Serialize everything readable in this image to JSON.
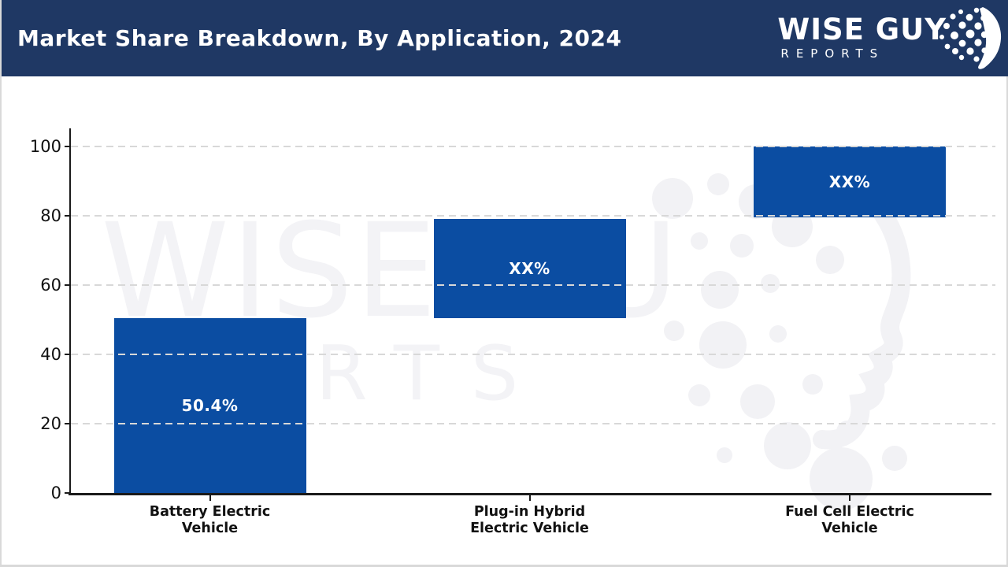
{
  "header": {
    "title": "Market Share Breakdown, By Application, 2024",
    "bg_color": "#1F3864",
    "logo": {
      "line1": "WISE GUY",
      "line2": "REPORTS"
    }
  },
  "watermark": {
    "line1": "WISE GU",
    "line2": "RORTS"
  },
  "chart_data": {
    "type": "bar",
    "subtype": "waterfall",
    "title": "Market Share Breakdown, By Application, 2024",
    "categories": [
      "Battery Electric\nVehicle",
      "Plug-in Hybrid\nElectric Vehicle",
      "Fuel Cell Electric\nVehicle"
    ],
    "segments": [
      {
        "start": 0,
        "end": 50.4,
        "label": "50.4%"
      },
      {
        "start": 50.4,
        "end": 79,
        "label": "XX%"
      },
      {
        "start": 79.6,
        "end": 100,
        "label": "XX%"
      }
    ],
    "yticks": [
      0,
      20,
      40,
      60,
      80,
      100
    ],
    "ylim": [
      0,
      100
    ],
    "xlabel": "",
    "ylabel": "",
    "grid": "dashed-horizontal-over-bars",
    "bar_color": "#0B4DA2",
    "label_color": "#ffffff",
    "axis_color": "#1a1a1a",
    "gridline_color": "#d8d8d8"
  }
}
